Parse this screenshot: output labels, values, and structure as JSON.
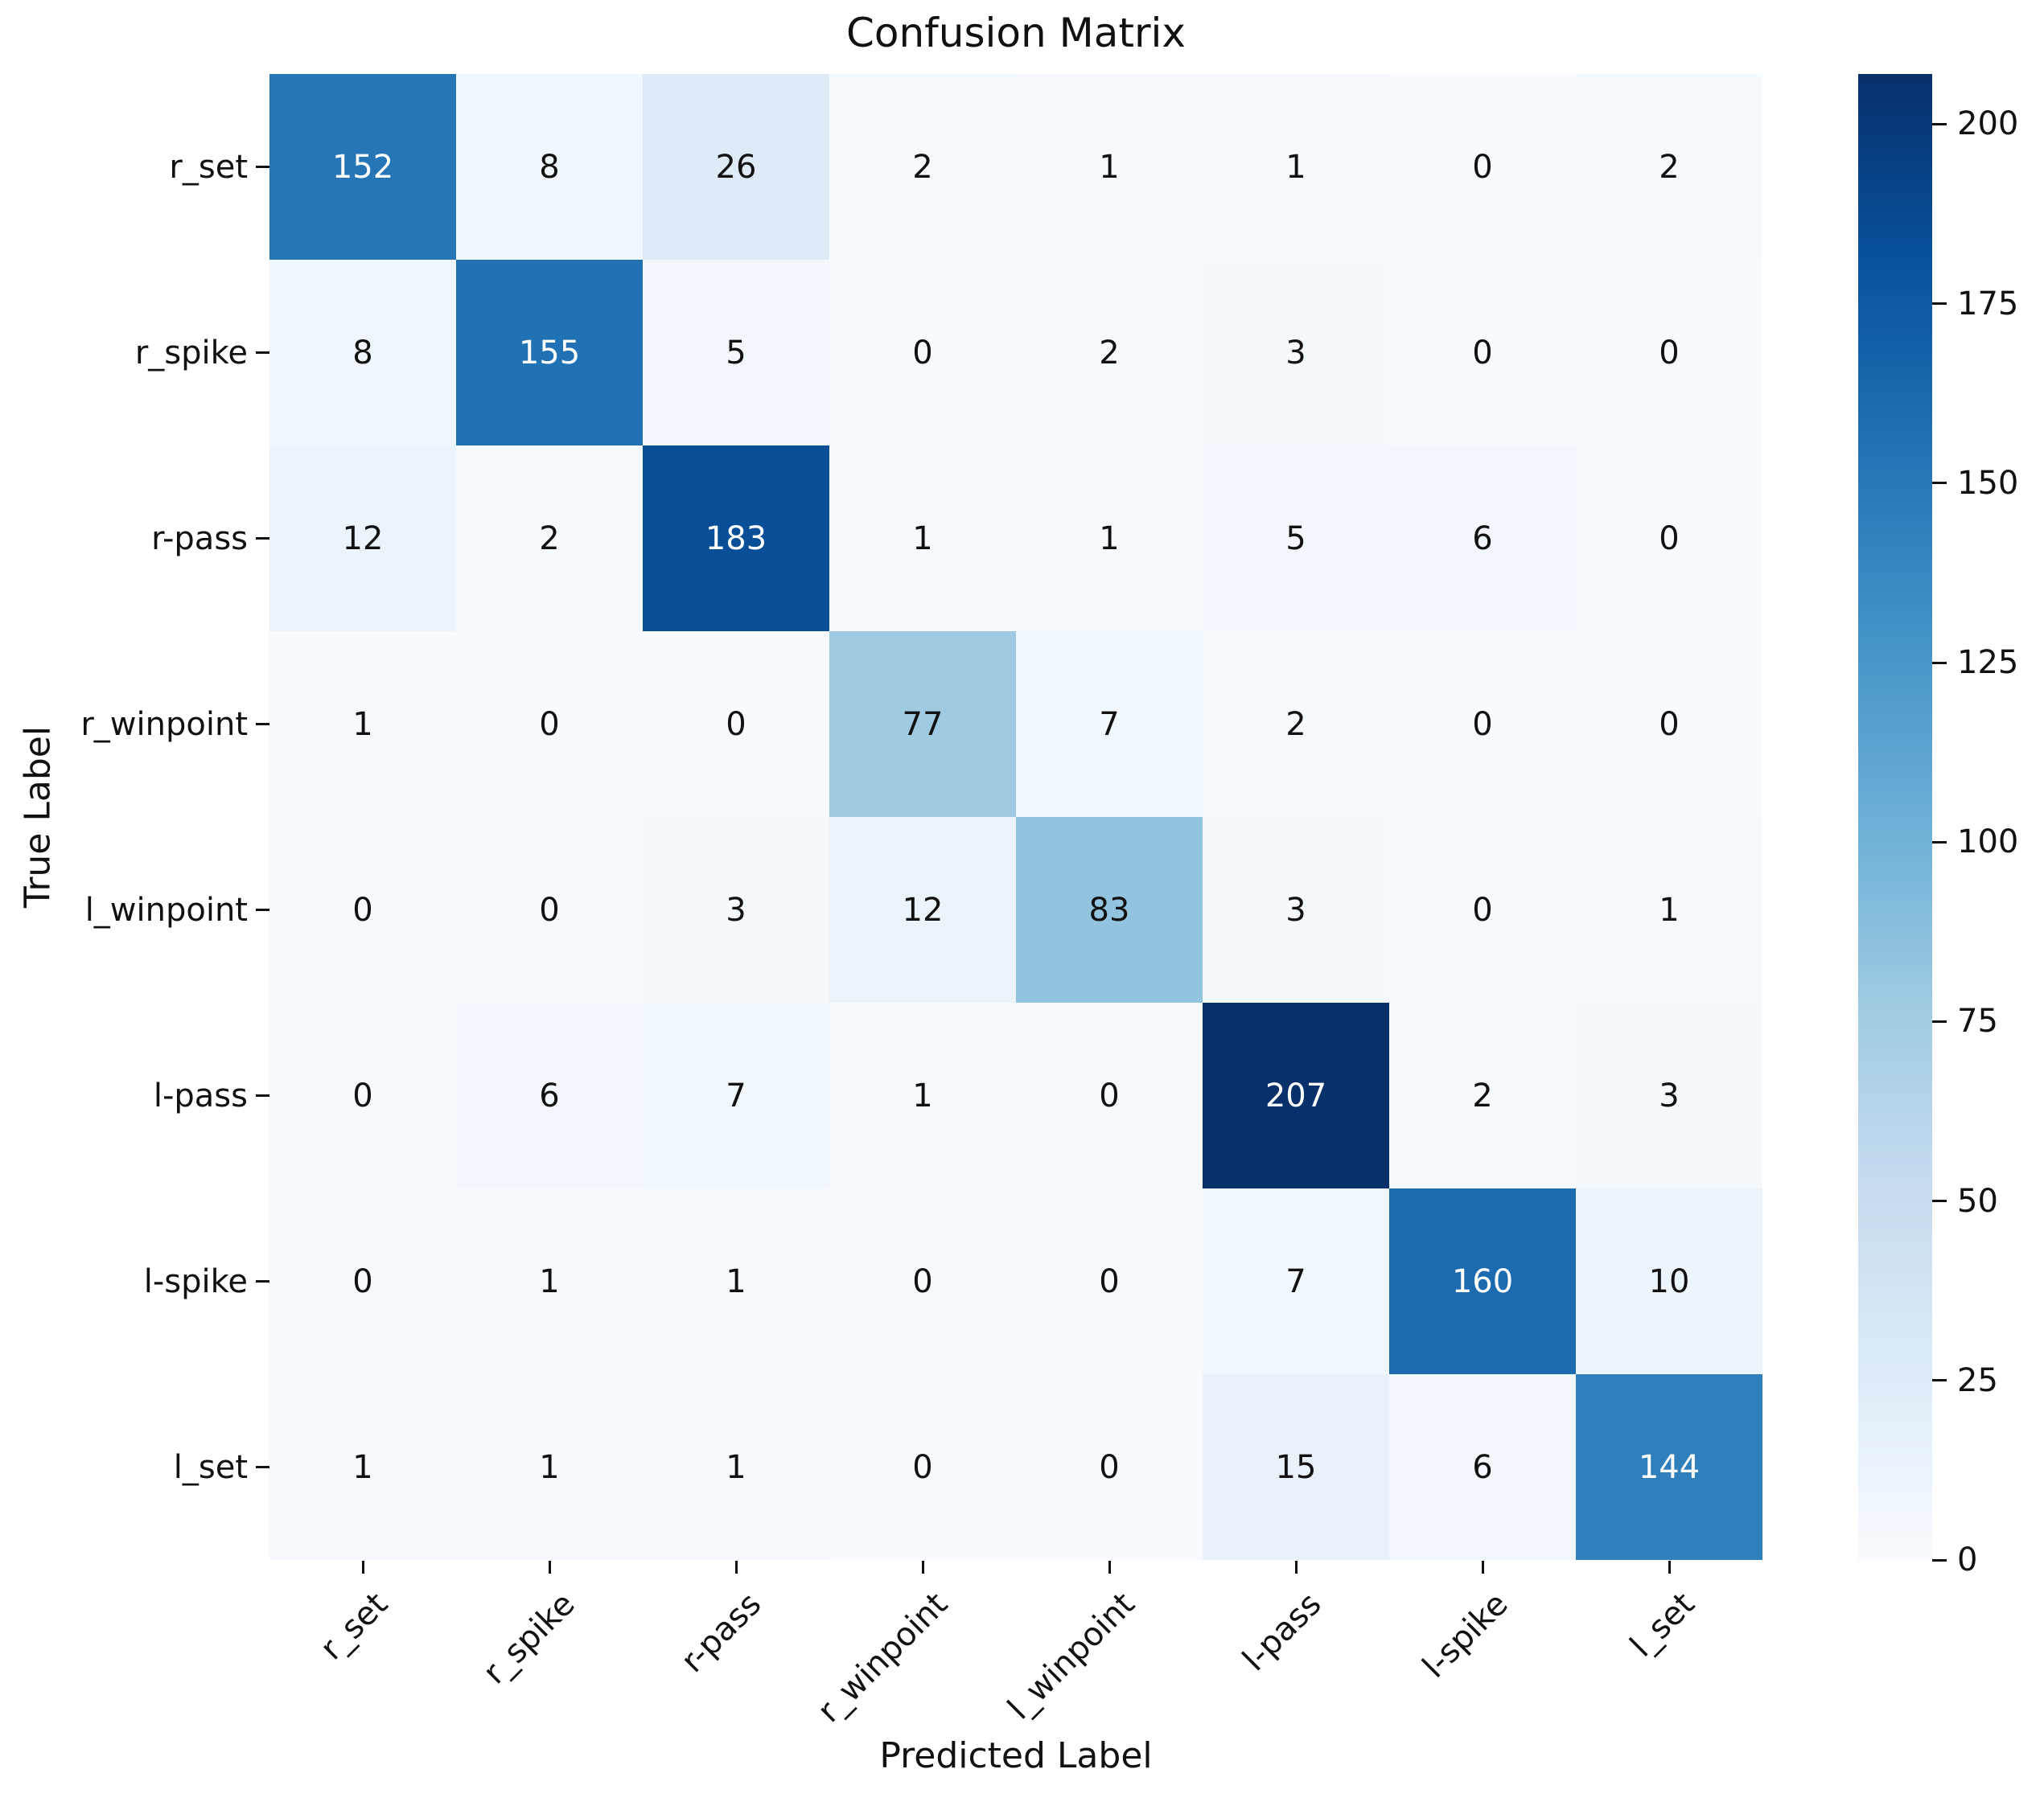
{
  "title": "Confusion Matrix",
  "chart_data": {
    "type": "heatmap",
    "title": "Confusion Matrix",
    "xlabel": "Predicted Label",
    "ylabel": "True Label",
    "x_categories": [
      "r_set",
      "r_spike",
      "r-pass",
      "r_winpoint",
      "l_winpoint",
      "l-pass",
      "l-spike",
      "l_set"
    ],
    "y_categories": [
      "r_set",
      "r_spike",
      "r-pass",
      "r_winpoint",
      "l_winpoint",
      "l-pass",
      "l-spike",
      "l_set"
    ],
    "values": [
      [
        152,
        8,
        26,
        2,
        1,
        1,
        0,
        2
      ],
      [
        8,
        155,
        5,
        0,
        2,
        3,
        0,
        0
      ],
      [
        12,
        2,
        183,
        1,
        1,
        5,
        6,
        0
      ],
      [
        1,
        0,
        0,
        77,
        7,
        2,
        0,
        0
      ],
      [
        0,
        0,
        3,
        12,
        83,
        3,
        0,
        1
      ],
      [
        0,
        6,
        7,
        1,
        0,
        207,
        2,
        3
      ],
      [
        0,
        1,
        1,
        0,
        0,
        7,
        160,
        10
      ],
      [
        1,
        1,
        1,
        0,
        0,
        15,
        6,
        144
      ]
    ],
    "vmin": 0,
    "vmax": 207,
    "annotated": true,
    "grid": false,
    "colormap": "Blues",
    "colormap_stops": [
      "#f7fbff",
      "#deebf7",
      "#c6dbef",
      "#9ecae1",
      "#6baed6",
      "#4292c6",
      "#2171b5",
      "#08519c",
      "#08306b"
    ],
    "colorbar_position": "right",
    "colorbar_ticks": [
      0,
      25,
      50,
      75,
      100,
      125,
      150,
      175,
      200
    ],
    "annotation_color_dark": "#111111",
    "annotation_color_light": "#ffffff"
  }
}
